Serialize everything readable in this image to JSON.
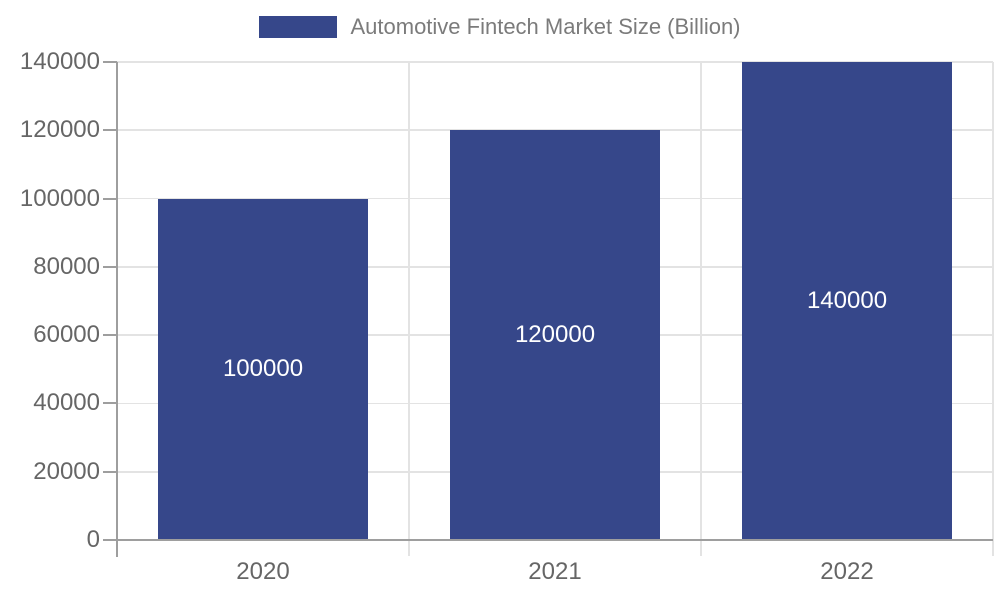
{
  "legend": {
    "label": "Automotive Fintech Market Size (Billion)"
  },
  "colors": {
    "bar": "#36478A",
    "bar_label": "#FFFFFF",
    "legend_text": "#7B7B7B",
    "tick_label": "#666666",
    "axis_line": "#9E9E9E",
    "grid_line": "#E3E3E3",
    "background": "#FFFFFF"
  },
  "chart_data": {
    "type": "bar",
    "title": "Automotive Fintech Market Size (Billion)",
    "categories": [
      "2020",
      "2021",
      "2022"
    ],
    "values": [
      100000,
      120000,
      140000
    ],
    "bar_labels": [
      "100000",
      "120000",
      "140000"
    ],
    "series": [
      {
        "name": "Automotive Fintech Market Size (Billion)",
        "values": [
          100000,
          120000,
          140000
        ]
      }
    ],
    "xlabel": "",
    "ylabel": "",
    "ylim": [
      0,
      140000
    ],
    "yticks": [
      0,
      20000,
      40000,
      60000,
      80000,
      100000,
      120000,
      140000
    ],
    "ytick_labels": [
      "0",
      "20000",
      "40000",
      "60000",
      "80000",
      "100000",
      "120000",
      "140000"
    ],
    "grid": true,
    "legend_position": "top-center",
    "bar_width_fraction": 0.72,
    "value_label_position": "center-inside"
  }
}
